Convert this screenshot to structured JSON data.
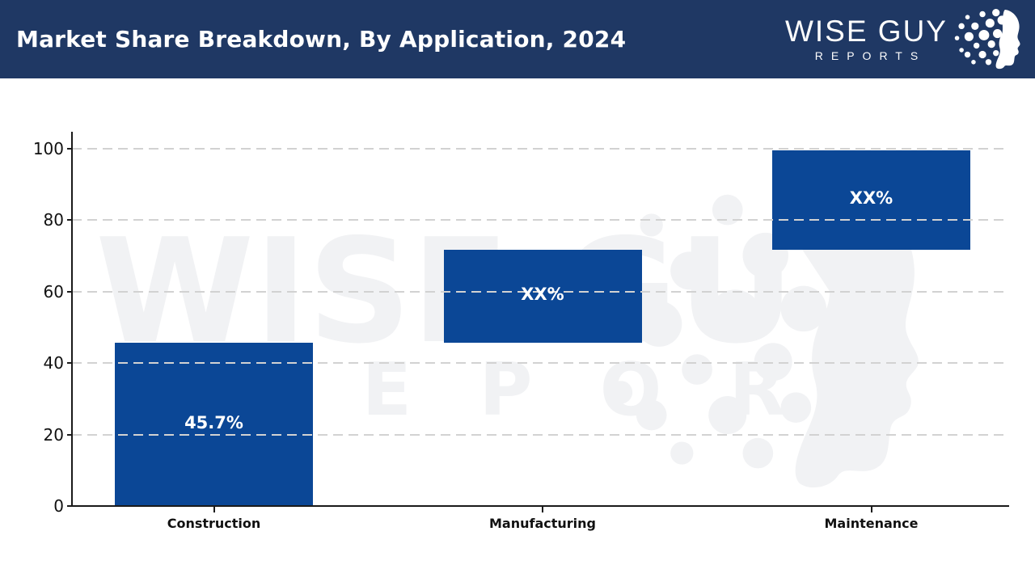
{
  "header": {
    "title": "Market Share Breakdown, By Application, 2024",
    "logo": {
      "name": "WISE GUY",
      "sub": "REPORTS"
    }
  },
  "watermark": {
    "name": "WISE GUY",
    "sub": "R E P O R T S"
  },
  "chart_data": {
    "type": "bar",
    "subtype": "floating-segment-bars",
    "title": "Market Share Breakdown, By Application, 2024",
    "categories": [
      "Construction",
      "Manufacturing",
      "Maintenance"
    ],
    "bars": [
      {
        "category": "Construction",
        "start": 0,
        "end": 45.7,
        "label": "45.7%"
      },
      {
        "category": "Manufacturing",
        "start": 45.7,
        "end": 71.8,
        "label": "XX%"
      },
      {
        "category": "Maintenance",
        "start": 71.8,
        "end": 99.5,
        "label": "XX%"
      }
    ],
    "y_ticks": [
      0,
      20,
      40,
      60,
      80,
      100
    ],
    "ylim": [
      0,
      105
    ],
    "xlabel": "",
    "ylabel": "",
    "legend": "none",
    "grid": "horizontal-dashed",
    "colors": {
      "bar": "#0b4796",
      "grid": "#d2d2d2",
      "axis": "#1a1a1a",
      "header_bg": "#1f3864",
      "bar_label": "#ffffff",
      "watermark": "#f1f2f4"
    }
  }
}
